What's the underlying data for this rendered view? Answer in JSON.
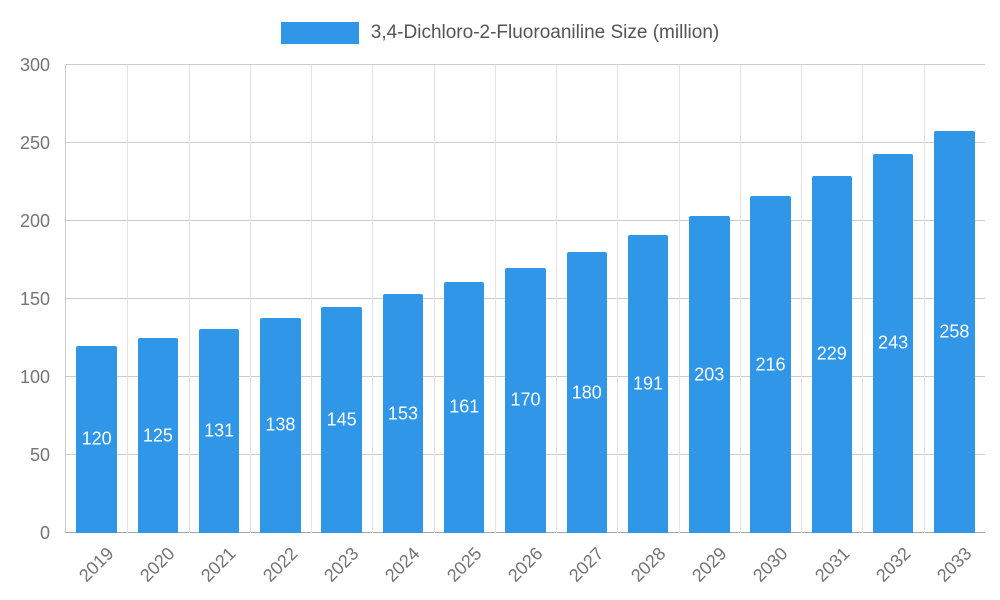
{
  "chart_data": {
    "type": "bar",
    "title": "3,4-Dichloro-2-Fluoroaniline Size (million)",
    "categories": [
      "2019",
      "2020",
      "2021",
      "2022",
      "2023",
      "2024",
      "2025",
      "2026",
      "2027",
      "2028",
      "2029",
      "2030",
      "2031",
      "2032",
      "2033"
    ],
    "values": [
      120,
      125,
      131,
      138,
      145,
      153,
      161,
      170,
      180,
      191,
      203,
      216,
      229,
      243,
      258
    ],
    "xlabel": "",
    "ylabel": "",
    "ylim": [
      0,
      300
    ],
    "yticks": [
      0,
      50,
      100,
      150,
      200,
      250,
      300
    ],
    "grid": true,
    "legend_position": "top",
    "value_labels_position": "inside-center",
    "colors": {
      "bar": "#2f96e8",
      "bar_value_label": "#ffffff",
      "axis_text": "#757575",
      "legend_text": "#545454",
      "gridline": "#cccccc"
    }
  }
}
